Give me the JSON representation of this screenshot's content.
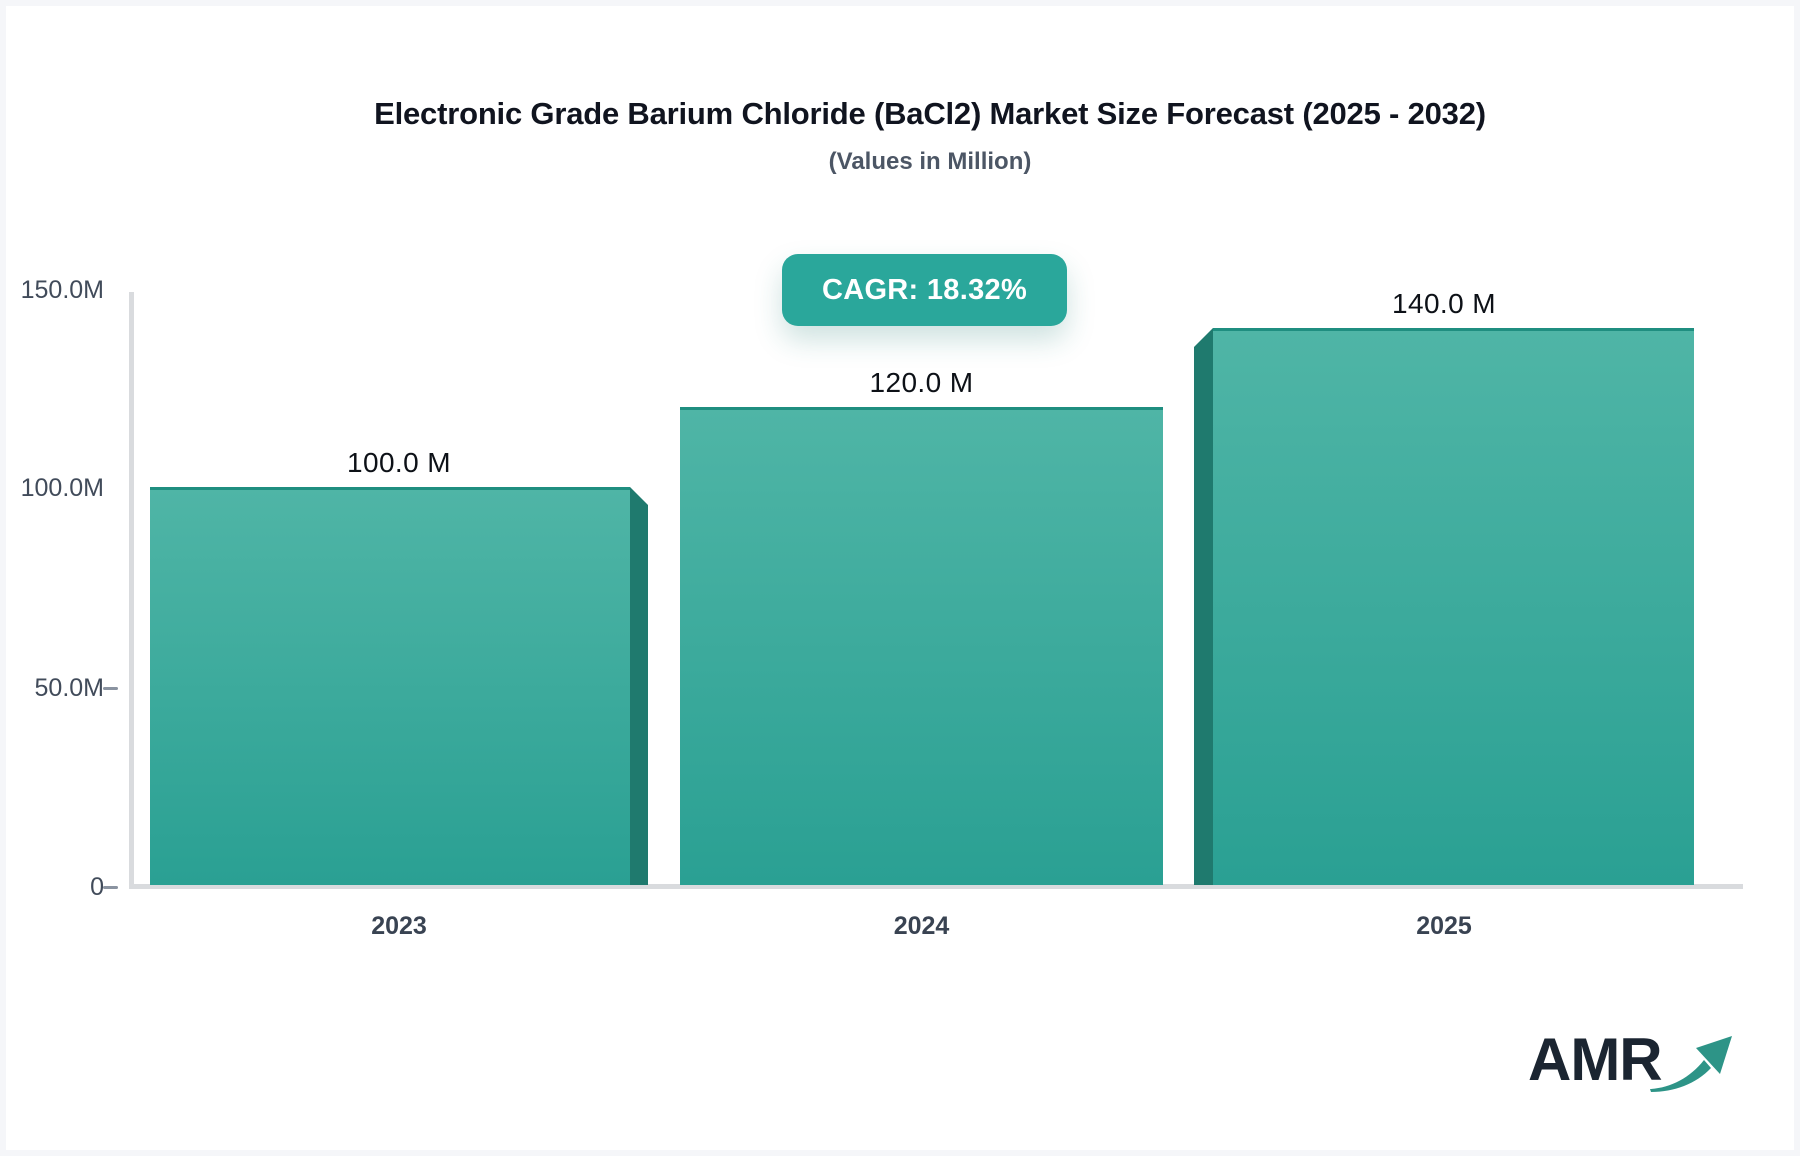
{
  "chart_data": {
    "type": "bar",
    "title": "Electronic Grade Barium Chloride (BaCl2) Market Size Forecast (2025 - 2032)",
    "subtitle": "(Values in Million)",
    "cagr_label": "CAGR: 18.32%",
    "categories": [
      "2023",
      "2024",
      "2025"
    ],
    "values": [
      100,
      120,
      140
    ],
    "value_labels": [
      "100.0 M",
      "120.0 M",
      "140.0 M"
    ],
    "xlabel": "",
    "ylabel": "",
    "ylim": [
      0,
      150
    ],
    "ytick_values": [
      150,
      100,
      50,
      0
    ],
    "ytick_labels": [
      "150.0M",
      "100.0M",
      "50.0M",
      "0"
    ],
    "grid": false,
    "legend": false
  },
  "logo": {
    "text": "AMR"
  },
  "colors": {
    "bar_top": "#4fb5a6",
    "bar_bottom": "#2aa093",
    "bar_side": "#1f7a6e",
    "bar_top_border": "#1f8e80",
    "badge_bg": "#2aa79b",
    "axis": "#d9dbde",
    "title": "#10141f",
    "subtitle": "#4c5665",
    "tick": "#414b5a",
    "xlabel": "#394352",
    "value_label": "#0d1117",
    "logo_text": "#1b2531",
    "logo_arrow": "#2d9487"
  }
}
